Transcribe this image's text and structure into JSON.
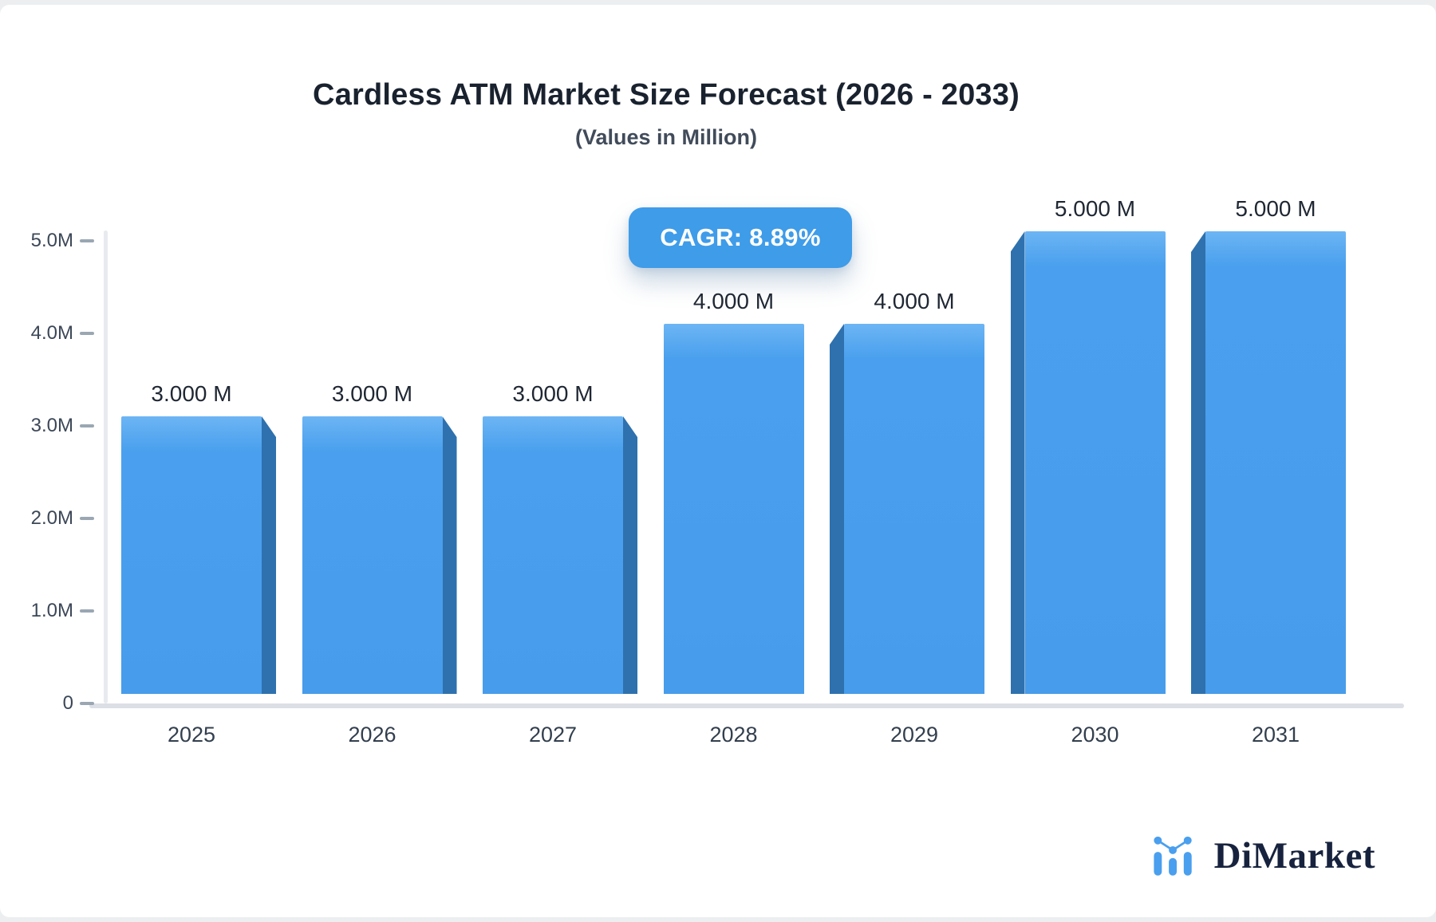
{
  "page": {
    "background": "#eceef0",
    "card_background": "#ffffff"
  },
  "header": {
    "title": "Cardless ATM Market Size Forecast (2026 - 2033)",
    "subtitle": "(Values in Million)"
  },
  "cagr_badge": {
    "label": "CAGR: 8.89%",
    "background": "#3e9ce9",
    "text_color": "#ffffff"
  },
  "chart_data": {
    "type": "bar",
    "title": "Cardless ATM Market Size Forecast (2026 - 2033)",
    "subtitle": "(Values in Million)",
    "categories": [
      "2025",
      "2026",
      "2027",
      "2028",
      "2029",
      "2030",
      "2031"
    ],
    "values": [
      3,
      3,
      3,
      4,
      4,
      5,
      5
    ],
    "value_labels": [
      "3.000 M",
      "3.000 M",
      "3.000 M",
      "4.000 M",
      "4.000 M",
      "5.000 M",
      "5.000 M"
    ],
    "unit": "Million",
    "xlabel": "",
    "ylabel": "",
    "ylim": [
      0,
      5
    ],
    "y_ticks": [
      {
        "label": "5.0M",
        "value": 5
      },
      {
        "label": "4.0M",
        "value": 4
      },
      {
        "label": "3.0M",
        "value": 3
      },
      {
        "label": "2.0M",
        "value": 2
      },
      {
        "label": "1.0M",
        "value": 1
      },
      {
        "label": "0",
        "value": 0
      }
    ],
    "grid": false,
    "legend_position": "none",
    "annotations": [
      "CAGR: 8.89%"
    ],
    "bar_color": "#4aa0ee",
    "bar_highlight_color": "#6db5f4",
    "bar_side_color": "#2e71ae"
  },
  "footer": {
    "logo_text": "DiMarket",
    "logo_icon": "bar-line-chart-icon",
    "logo_icon_color": "#4a9fee",
    "logo_text_color": "#17233e"
  }
}
